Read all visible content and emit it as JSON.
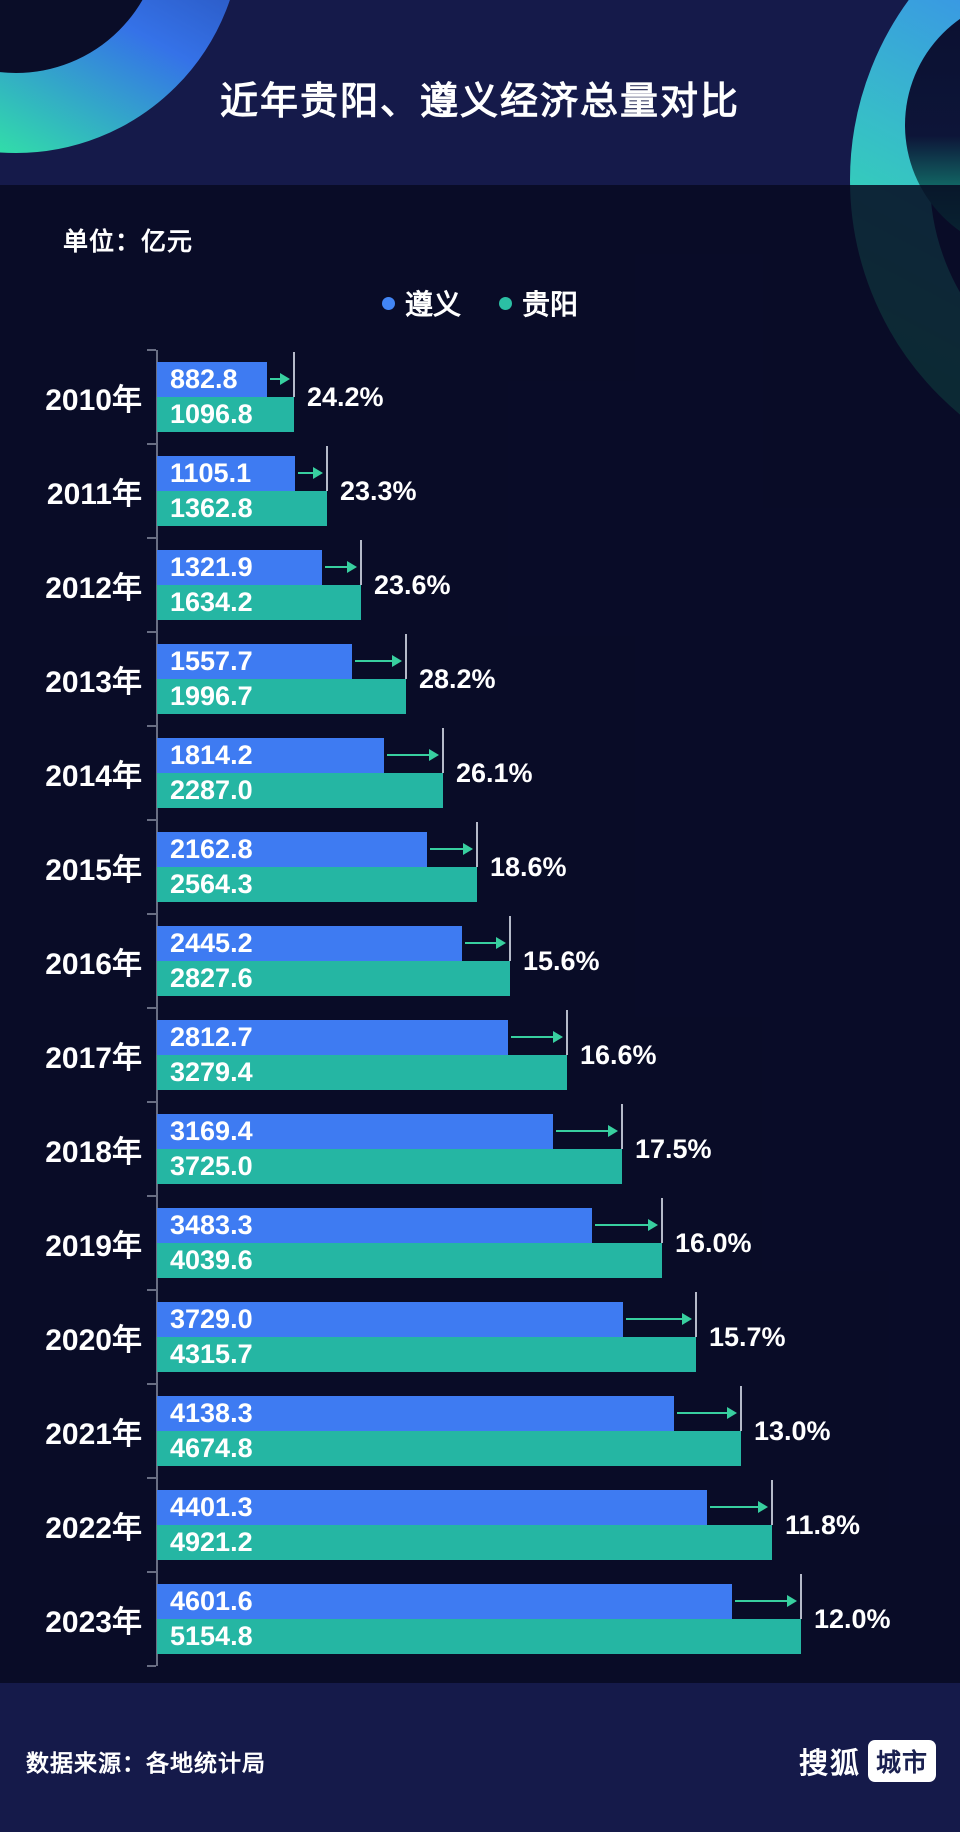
{
  "title": "近年贵阳、遵义经济总量对比",
  "unit_label": "单位：亿元",
  "legend": {
    "items": [
      {
        "label": "遵义",
        "color": "#4285f4"
      },
      {
        "label": "贵阳",
        "color": "#2bbfa4"
      }
    ]
  },
  "footer": {
    "source": "数据来源：各地统计局",
    "brand_name": "搜狐",
    "brand_badge": "城市"
  },
  "colors": {
    "zunyi_bar": "#3e7bf2",
    "guiyang_bar": "#25b6a3",
    "arrow": "#38cf9f",
    "background": "#151a4a",
    "panel": "#0b0e2e"
  },
  "chart_data": {
    "type": "bar",
    "orientation": "horizontal",
    "title": "近年贵阳、遵义经济总量对比",
    "unit": "亿元",
    "legend_position": "top",
    "grid": false,
    "xlim": [
      0,
      5154.8
    ],
    "categories": [
      "2010年",
      "2011年",
      "2012年",
      "2013年",
      "2014年",
      "2015年",
      "2016年",
      "2017年",
      "2018年",
      "2019年",
      "2020年",
      "2021年",
      "2022年",
      "2023年"
    ],
    "series": [
      {
        "name": "遵义",
        "color": "#3e7bf2",
        "values": [
          882.8,
          1105.1,
          1321.9,
          1557.7,
          1814.2,
          2162.8,
          2445.2,
          2812.7,
          3169.4,
          3483.3,
          3729.0,
          4138.3,
          4401.3,
          4601.6
        ],
        "value_labels": [
          "882.8",
          "1105.1",
          "1321.9",
          "1557.7",
          "1814.2",
          "2162.8",
          "2445.2",
          "2812.7",
          "3169.4",
          "3483.3",
          "3729.0",
          "4138.3",
          "4401.3",
          "4601.6"
        ]
      },
      {
        "name": "贵阳",
        "color": "#25b6a3",
        "values": [
          1096.8,
          1362.8,
          1634.2,
          1996.7,
          2287.0,
          2564.3,
          2827.6,
          3279.4,
          3725.0,
          4039.6,
          4315.7,
          4674.8,
          4921.2,
          5154.8
        ],
        "value_labels": [
          "1096.8",
          "1362.8",
          "1634.2",
          "1996.7",
          "2287.0",
          "2564.3",
          "2827.6",
          "3279.4",
          "3725.0",
          "4039.6",
          "4315.7",
          "4674.8",
          "4921.2",
          "5154.8"
        ]
      }
    ],
    "gap_percent_labels": [
      "24.2%",
      "23.3%",
      "23.6%",
      "28.2%",
      "26.1%",
      "18.6%",
      "15.6%",
      "16.6%",
      "17.5%",
      "16.0%",
      "15.7%",
      "13.0%",
      "11.8%",
      "12.0%"
    ]
  }
}
